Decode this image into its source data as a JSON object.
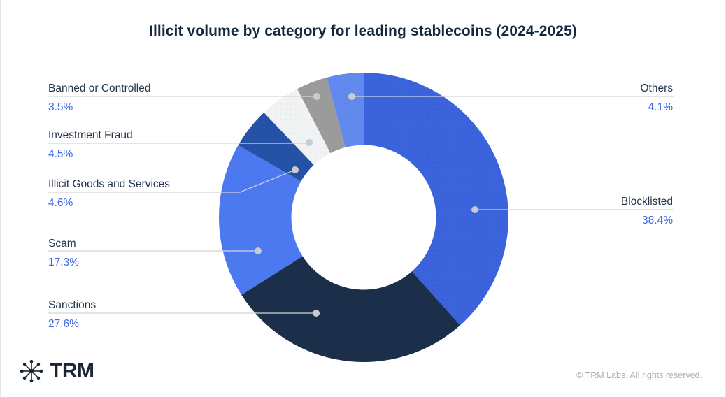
{
  "header": {
    "title": "Illicit volume by category for leading stablecoins (2024-2025)"
  },
  "chart_data": {
    "type": "pie",
    "subtype": "donut",
    "title": "Illicit volume by category for leading stablecoins (2024-2025)",
    "units": "%",
    "total": 100,
    "start_angle_deg": 0,
    "direction": "clockwise",
    "inner_radius_ratio": 0.5,
    "legend_position": "callouts-left-right",
    "slices": [
      {
        "label": "Blocklisted",
        "value": 38.4,
        "color": "#3a63dc"
      },
      {
        "label": "Sanctions",
        "value": 27.6,
        "color": "#1b2f4b"
      },
      {
        "label": "Scam",
        "value": 17.3,
        "color": "#4c79f0"
      },
      {
        "label": "Illicit Goods and Services",
        "value": 4.6,
        "color": "#2552a6"
      },
      {
        "label": "Investment Fraud",
        "value": 4.5,
        "color": "#f1f2f3"
      },
      {
        "label": "Banned or Controlled",
        "value": 3.5,
        "color": "#9b9b9b"
      },
      {
        "label": "Others",
        "value": 4.1,
        "color": "#6189ee"
      }
    ]
  },
  "callouts": {
    "left": [
      {
        "label": "Banned or Controlled",
        "value": "3.5%"
      },
      {
        "label": "Investment Fraud",
        "value": "4.5%"
      },
      {
        "label": "Illicit Goods and Services",
        "value": "4.6%"
      },
      {
        "label": "Scam",
        "value": "17.3%"
      },
      {
        "label": "Sanctions",
        "value": "27.6%"
      }
    ],
    "right": [
      {
        "label": "Others",
        "value": "4.1%"
      },
      {
        "label": "Blocklisted",
        "value": "38.4%"
      }
    ]
  },
  "branding": {
    "logo_text": "TRM",
    "logo_icon": "trm-snowflake-icon"
  },
  "footer": {
    "copyright": "© TRM Labs. All rights reserved."
  },
  "colors": {
    "title_text": "#16283d",
    "label_text": "#22344b",
    "value_text": "#3c67e5",
    "leader_line": "#d4d6d8",
    "leader_dot": "#c9cccf",
    "background": "#ffffff",
    "edge_border": "#e4e5e7",
    "copyright_text": "#a9afb8",
    "logo_text": "#1b2534"
  }
}
